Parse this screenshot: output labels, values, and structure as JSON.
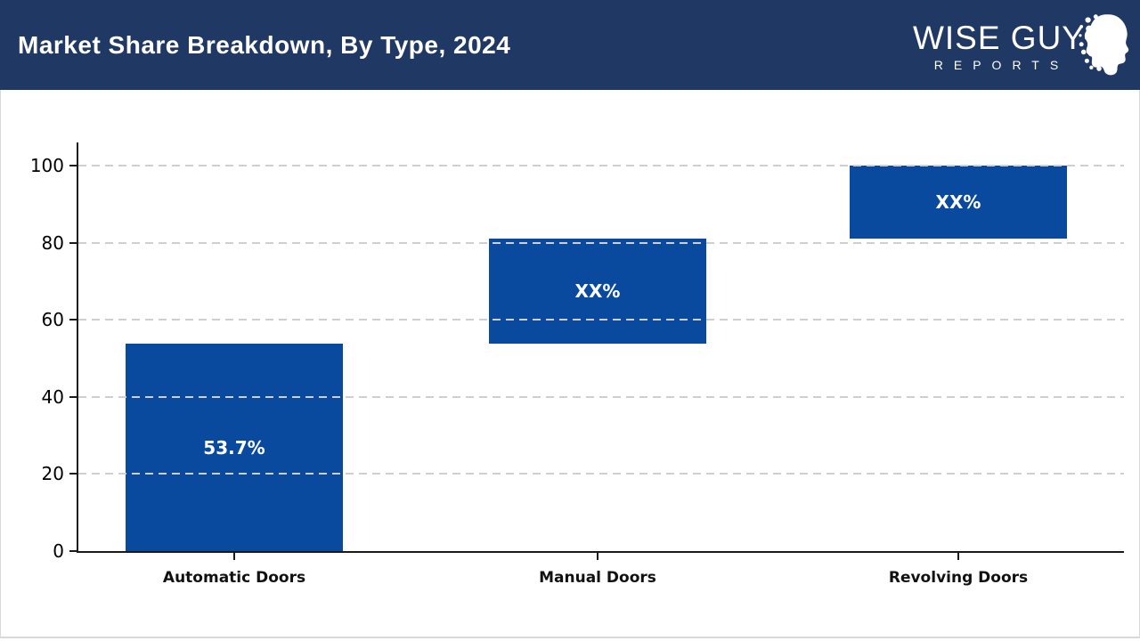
{
  "header": {
    "title": "Market Share Breakdown, By Type, 2024",
    "logo": {
      "line1": "WISE GUY",
      "line2": "REPORTS"
    }
  },
  "watermark": {
    "line1": "WISE GUY",
    "line2": "REPORTS"
  },
  "colors": {
    "header_bg": "#1F3864",
    "bar": "#0A4A9E",
    "grid": "#cfcfcf",
    "axis": "#1a1a1a",
    "frame_border": "#d9d9d9",
    "watermark": "#f2f2f4",
    "bar_label_text": "#ffffff"
  },
  "chart_data": {
    "type": "bar",
    "subtype": "stepped-waterfall",
    "title": "Market Share Breakdown, By Type, 2024",
    "categories": [
      "Automatic Doors",
      "Manual Doors",
      "Revolving Doors"
    ],
    "segments": [
      {
        "category": "Automatic Doors",
        "start": 0,
        "end": 53.7,
        "label": "53.7%"
      },
      {
        "category": "Manual Doors",
        "start": 53.7,
        "end": 81,
        "label": "XX%"
      },
      {
        "category": "Revolving Doors",
        "start": 81,
        "end": 100,
        "label": "XX%"
      }
    ],
    "ylim": [
      0,
      100
    ],
    "yticks": [
      0,
      20,
      40,
      60,
      80,
      100
    ],
    "grid": "horizontal-dashed",
    "legend": "none",
    "xlabel": "",
    "ylabel": ""
  }
}
